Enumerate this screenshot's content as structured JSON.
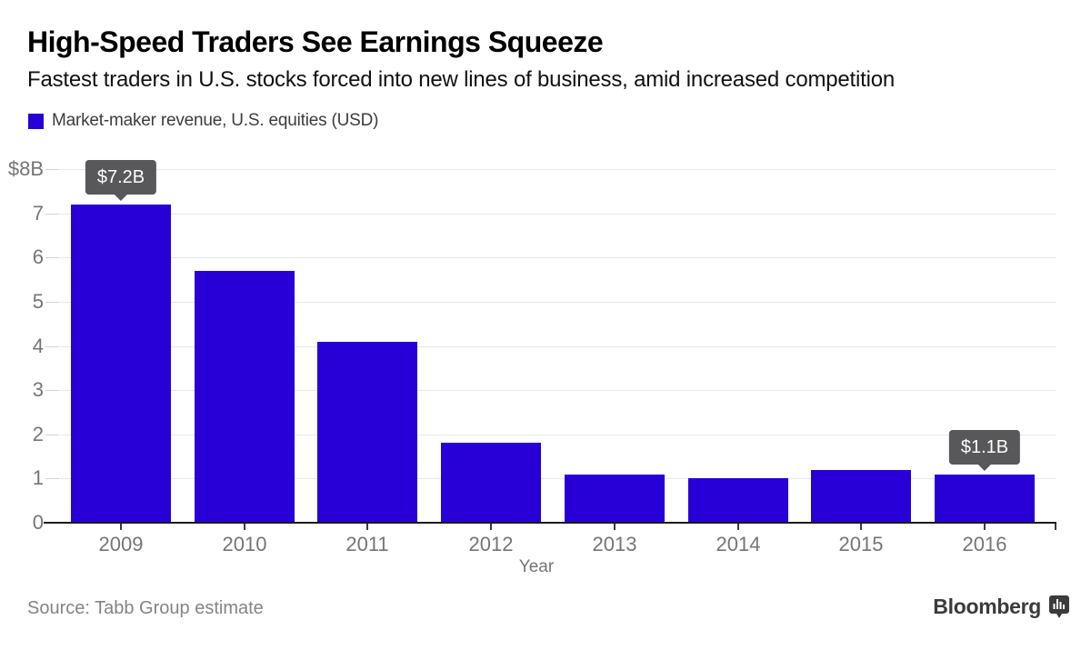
{
  "header": {
    "title": "High-Speed Traders See Earnings Squeeze",
    "subtitle": "Fastest traders in U.S. stocks forced into new lines of business, amid increased competition"
  },
  "legend": {
    "label": "Market-maker revenue, U.S. equities (USD)",
    "swatch_color": "#2800d7"
  },
  "chart_data": {
    "type": "bar",
    "categories": [
      "2009",
      "2010",
      "2011",
      "2012",
      "2013",
      "2014",
      "2015",
      "2016"
    ],
    "values": [
      7.2,
      5.7,
      4.1,
      1.8,
      1.1,
      1.0,
      1.2,
      1.1
    ],
    "series_name": "Market-maker revenue, U.S. equities (USD)",
    "title": "High-Speed Traders See Earnings Squeeze",
    "xlabel": "Year",
    "ylabel": "",
    "ylim": [
      0,
      8
    ],
    "ytick_labels": [
      "0",
      "1",
      "2",
      "3",
      "4",
      "5",
      "6",
      "7",
      "$8B"
    ],
    "grid": true,
    "legend_position": "top-left",
    "bar_color": "#2800d7",
    "annotations": [
      {
        "category": "2009",
        "value_label": "$7.2B"
      },
      {
        "category": "2016",
        "value_label": "$1.1B"
      }
    ]
  },
  "colors": {
    "bar": "#2800d7",
    "tooltip_bg": "#58585a",
    "axis_text": "#757575",
    "gridline": "#e8e8e8"
  },
  "footer": {
    "source": "Source: Tabb Group estimate",
    "brand": "Bloomberg"
  }
}
